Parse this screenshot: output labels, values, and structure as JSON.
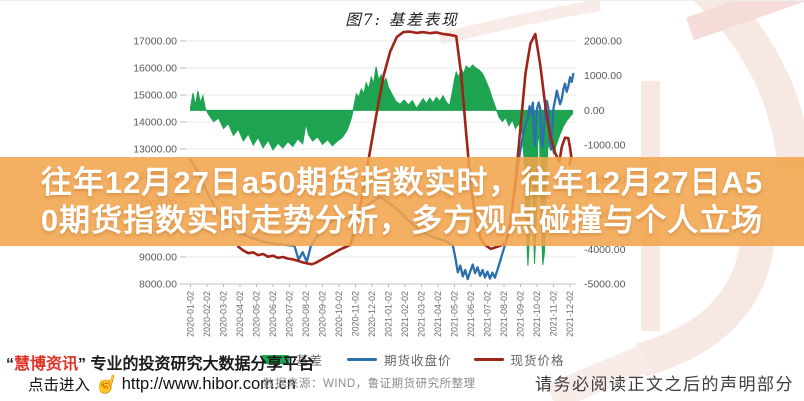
{
  "page": {
    "background_color": "#ffffff",
    "watermark_color": "#f8e8e4"
  },
  "banner": {
    "line1": "往年12月27日a50期货指数实时，往年12月27日A5",
    "line2": "0期货指数实时走势分析，多方观点碰撞与个人立场",
    "bg_color": "#f1a44c",
    "text_color": "#ffffff"
  },
  "chart_data": {
    "type": "line",
    "title": "图7: 基差表现",
    "grid": true,
    "legend_position": "bottom",
    "left_axis": {
      "min": 8000,
      "max": 17000,
      "step": 1000
    },
    "right_axis": {
      "min": -5000,
      "max": 2000,
      "step": 1000
    },
    "x_labels": [
      "2020-01-02",
      "2020-02-02",
      "2020-03-02",
      "2020-04-02",
      "2020-05-02",
      "2020-06-02",
      "2020-07-02",
      "2020-08-02",
      "2020-09-02",
      "2020-10-02",
      "2020-11-02",
      "2020-12-02",
      "2021-01-02",
      "2021-02-02",
      "2021-03-02",
      "2021-04-02",
      "2021-05-02",
      "2021-06-02",
      "2021-07-02",
      "2021-08-02",
      "2021-09-02",
      "2021-10-02",
      "2021-11-02",
      "2021-12-02"
    ],
    "series": [
      {
        "name": "基差",
        "axis": "right",
        "marker": "area",
        "color": "#1ea351",
        "width": 1,
        "points": [
          [
            0,
            80
          ],
          [
            0.15,
            500
          ],
          [
            0.3,
            150
          ],
          [
            0.45,
            560
          ],
          [
            0.6,
            220
          ],
          [
            0.75,
            420
          ],
          [
            0.9,
            60
          ],
          [
            1.1,
            -120
          ],
          [
            1.4,
            -320
          ],
          [
            1.7,
            -220
          ],
          [
            2.0,
            -520
          ],
          [
            2.3,
            -380
          ],
          [
            2.6,
            -720
          ],
          [
            2.9,
            -540
          ],
          [
            3.2,
            -880
          ],
          [
            3.5,
            -680
          ],
          [
            3.8,
            -1000
          ],
          [
            4.1,
            -780
          ],
          [
            4.4,
            -1080
          ],
          [
            4.7,
            -860
          ],
          [
            5.0,
            -1140
          ],
          [
            5.3,
            -940
          ],
          [
            5.6,
            -1080
          ],
          [
            5.9,
            -900
          ],
          [
            6.2,
            -1040
          ],
          [
            6.5,
            -820
          ],
          [
            6.8,
            -960
          ],
          [
            7.0,
            -380
          ],
          [
            7.15,
            -700
          ],
          [
            7.4,
            -880
          ],
          [
            7.7,
            -760
          ],
          [
            8.0,
            -980
          ],
          [
            8.3,
            -840
          ],
          [
            8.6,
            -1020
          ],
          [
            8.9,
            -880
          ],
          [
            9.2,
            -780
          ],
          [
            9.5,
            -560
          ],
          [
            9.75,
            -220
          ],
          [
            9.9,
            120
          ],
          [
            10.05,
            480
          ],
          [
            10.2,
            380
          ],
          [
            10.35,
            620
          ],
          [
            10.5,
            480
          ],
          [
            10.65,
            800
          ],
          [
            10.8,
            620
          ],
          [
            10.95,
            960
          ],
          [
            11.1,
            780
          ],
          [
            11.25,
            1260
          ],
          [
            11.4,
            880
          ],
          [
            11.55,
            1020
          ],
          [
            11.7,
            800
          ],
          [
            11.85,
            920
          ],
          [
            12.0,
            660
          ],
          [
            12.2,
            480
          ],
          [
            12.45,
            260
          ],
          [
            12.7,
            180
          ],
          [
            12.95,
            300
          ],
          [
            13.2,
            160
          ],
          [
            13.45,
            280
          ],
          [
            13.7,
            60
          ],
          [
            13.9,
            200
          ],
          [
            14.1,
            340
          ],
          [
            14.3,
            200
          ],
          [
            14.5,
            360
          ],
          [
            14.7,
            220
          ],
          [
            14.9,
            380
          ],
          [
            15.1,
            260
          ],
          [
            15.3,
            420
          ],
          [
            15.5,
            240
          ],
          [
            15.7,
            140
          ],
          [
            15.85,
            480
          ],
          [
            16.0,
            900
          ],
          [
            16.1,
            1100
          ],
          [
            16.25,
            950
          ],
          [
            16.4,
            1200
          ],
          [
            16.55,
            1060
          ],
          [
            16.7,
            1280
          ],
          [
            16.9,
            1200
          ],
          [
            17.1,
            1310
          ],
          [
            17.3,
            1220
          ],
          [
            17.5,
            1160
          ],
          [
            17.7,
            1060
          ],
          [
            17.9,
            860
          ],
          [
            18.1,
            620
          ],
          [
            18.3,
            340
          ],
          [
            18.5,
            60
          ],
          [
            18.7,
            -200
          ],
          [
            18.9,
            -320
          ],
          [
            19.1,
            -200
          ],
          [
            19.3,
            -440
          ],
          [
            19.5,
            -280
          ],
          [
            19.7,
            -520
          ],
          [
            19.9,
            -380
          ],
          [
            20.1,
            -700
          ],
          [
            20.25,
            -1600
          ],
          [
            20.35,
            -3400
          ],
          [
            20.45,
            -4480
          ],
          [
            20.55,
            -3600
          ],
          [
            20.65,
            -1200
          ],
          [
            20.75,
            -2600
          ],
          [
            20.85,
            -4420
          ],
          [
            20.95,
            -3300
          ],
          [
            21.05,
            -900
          ],
          [
            21.15,
            -700
          ],
          [
            21.25,
            -3000
          ],
          [
            21.35,
            -4450
          ],
          [
            21.45,
            -4100
          ],
          [
            21.55,
            -2400
          ],
          [
            21.65,
            -1100
          ],
          [
            21.8,
            -850
          ],
          [
            22.0,
            -1250
          ],
          [
            22.2,
            -950
          ],
          [
            22.4,
            -680
          ],
          [
            22.6,
            -460
          ],
          [
            22.8,
            -300
          ],
          [
            23.0,
            -180
          ],
          [
            23.15,
            -90
          ]
        ]
      },
      {
        "name": "期货收盘价",
        "axis": "left",
        "marker": "line",
        "color": "#2b6fad",
        "width": 2.3,
        "points": [
          [
            0,
            12600
          ],
          [
            0.5,
            12100
          ],
          [
            1,
            11400
          ],
          [
            1.5,
            10800
          ],
          [
            2,
            10400
          ],
          [
            2.5,
            10100
          ],
          [
            3,
            9900
          ],
          [
            3.5,
            9750
          ],
          [
            4,
            9650
          ],
          [
            4.5,
            9550
          ],
          [
            5,
            9500
          ],
          [
            5.5,
            9460
          ],
          [
            6,
            9430
          ],
          [
            6.3,
            9420
          ],
          [
            6.55,
            8900
          ],
          [
            6.8,
            9180
          ],
          [
            7.05,
            8820
          ],
          [
            7.3,
            9420
          ],
          [
            7.6,
            9700
          ],
          [
            8,
            10050
          ],
          [
            8.5,
            10300
          ],
          [
            9,
            10500
          ],
          [
            9.5,
            10420
          ],
          [
            10,
            10600
          ],
          [
            10.5,
            10820
          ],
          [
            11,
            11050
          ],
          [
            11.5,
            11220
          ],
          [
            12,
            11020
          ],
          [
            12.5,
            10780
          ],
          [
            13,
            10480
          ],
          [
            13.5,
            10180
          ],
          [
            14,
            9950
          ],
          [
            14.5,
            9780
          ],
          [
            15,
            9680
          ],
          [
            15.5,
            9580
          ],
          [
            15.9,
            9420
          ],
          [
            16.05,
            8980
          ],
          [
            16.2,
            8430
          ],
          [
            16.35,
            8680
          ],
          [
            16.5,
            8280
          ],
          [
            16.65,
            8520
          ],
          [
            16.8,
            8180
          ],
          [
            16.95,
            8460
          ],
          [
            17.1,
            8720
          ],
          [
            17.25,
            8400
          ],
          [
            17.4,
            8620
          ],
          [
            17.55,
            8300
          ],
          [
            17.7,
            8520
          ],
          [
            17.85,
            8240
          ],
          [
            18.0,
            8460
          ],
          [
            18.15,
            8200
          ],
          [
            18.3,
            8420
          ],
          [
            18.45,
            8230
          ],
          [
            18.6,
            8520
          ],
          [
            18.75,
            8820
          ],
          [
            18.9,
            9120
          ],
          [
            19.05,
            9420
          ],
          [
            19.3,
            9900
          ],
          [
            19.6,
            11200
          ],
          [
            19.9,
            12600
          ],
          [
            20.2,
            13700
          ],
          [
            20.45,
            14150
          ],
          [
            20.55,
            14580
          ],
          [
            20.65,
            14300
          ],
          [
            20.75,
            14720
          ],
          [
            20.82,
            13380
          ],
          [
            20.88,
            13120
          ],
          [
            21.0,
            14480
          ],
          [
            21.1,
            14720
          ],
          [
            21.2,
            14480
          ],
          [
            21.28,
            13320
          ],
          [
            21.34,
            13080
          ],
          [
            21.5,
            14560
          ],
          [
            21.6,
            14780
          ],
          [
            21.7,
            14480
          ],
          [
            21.78,
            13180
          ],
          [
            21.84,
            12980
          ],
          [
            22.0,
            14520
          ],
          [
            22.1,
            14820
          ],
          [
            22.2,
            15160
          ],
          [
            22.3,
            14900
          ],
          [
            22.4,
            14660
          ],
          [
            22.5,
            14860
          ],
          [
            22.6,
            15220
          ],
          [
            22.7,
            15420
          ],
          [
            22.8,
            15120
          ],
          [
            22.9,
            15320
          ],
          [
            23.0,
            15660
          ],
          [
            23.1,
            15480
          ],
          [
            23.2,
            15780
          ]
        ]
      },
      {
        "name": "现货价格",
        "axis": "left",
        "marker": "line",
        "color": "#9e2418",
        "width": 2.6,
        "points": [
          [
            2.9,
            9380
          ],
          [
            3.2,
            9240
          ],
          [
            3.5,
            9140
          ],
          [
            3.8,
            9170
          ],
          [
            4.1,
            9070
          ],
          [
            4.4,
            9110
          ],
          [
            4.7,
            9010
          ],
          [
            5.0,
            9050
          ],
          [
            5.3,
            8970
          ],
          [
            5.6,
            9000
          ],
          [
            5.9,
            8940
          ],
          [
            6.2,
            8910
          ],
          [
            6.5,
            8860
          ],
          [
            6.8,
            8800
          ],
          [
            7.1,
            8760
          ],
          [
            7.35,
            8730
          ],
          [
            7.6,
            8790
          ],
          [
            7.9,
            8890
          ],
          [
            8.2,
            8990
          ],
          [
            8.5,
            9090
          ],
          [
            8.8,
            9190
          ],
          [
            9.1,
            9290
          ],
          [
            9.4,
            9370
          ],
          [
            9.7,
            9450
          ],
          [
            10.1,
            10300
          ],
          [
            10.5,
            11600
          ],
          [
            10.9,
            13000
          ],
          [
            11.3,
            14400
          ],
          [
            11.7,
            15700
          ],
          [
            12.1,
            16600
          ],
          [
            12.5,
            17150
          ],
          [
            12.9,
            17330
          ],
          [
            13.3,
            17350
          ],
          [
            13.7,
            17300
          ],
          [
            14.1,
            17330
          ],
          [
            14.5,
            17290
          ],
          [
            14.9,
            17320
          ],
          [
            15.3,
            17260
          ],
          [
            15.7,
            17230
          ],
          [
            16.1,
            17180
          ],
          [
            16.4,
            15800
          ],
          [
            16.7,
            13600
          ],
          [
            17.0,
            11600
          ],
          [
            17.3,
            10300
          ],
          [
            17.6,
            9650
          ],
          [
            17.9,
            9430
          ],
          [
            18.2,
            9300
          ],
          [
            18.5,
            9360
          ],
          [
            18.8,
            9420
          ],
          [
            19.1,
            9520
          ],
          [
            19.4,
            10300
          ],
          [
            19.7,
            11800
          ],
          [
            20.0,
            13800
          ],
          [
            20.3,
            15800
          ],
          [
            20.6,
            16900
          ],
          [
            20.9,
            17260
          ],
          [
            21.2,
            16100
          ],
          [
            21.5,
            14600
          ],
          [
            21.8,
            13500
          ],
          [
            22.1,
            12850
          ],
          [
            22.35,
            12520
          ],
          [
            22.5,
            13080
          ],
          [
            22.7,
            13420
          ],
          [
            22.9,
            13400
          ],
          [
            23.0,
            13060
          ],
          [
            23.08,
            12700
          ],
          [
            22.98,
            12440
          ]
        ]
      }
    ]
  },
  "footer": {
    "brand_quote_open": "“",
    "brand_name": "慧博资讯",
    "brand_quote_close": "”",
    "brand_tagline": "专业的投资研究大数据分享平台",
    "click_enter": "点击进入",
    "pointer_icon": "☝",
    "url": "http://www.hibor.com.cn",
    "source": "数据来源：WIND，鲁证期货研究所整理",
    "disclaimer": "请务必阅读正文之后的声明部分",
    "brand_color": "#e03228"
  }
}
